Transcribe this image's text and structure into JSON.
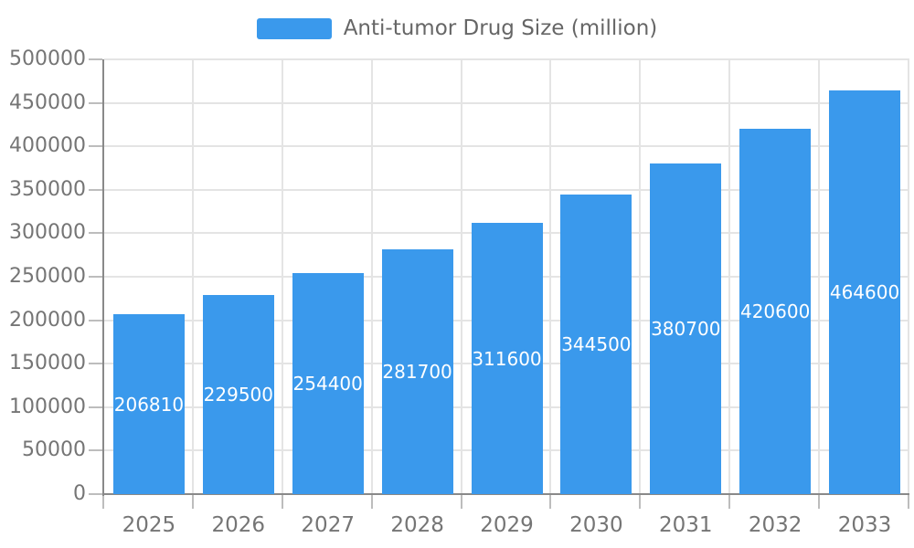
{
  "chart_data": {
    "type": "bar",
    "title": "",
    "legend": [
      "Anti-tumor Drug Size (million)"
    ],
    "legend_position": "top-center",
    "categories": [
      "2025",
      "2026",
      "2027",
      "2028",
      "2029",
      "2030",
      "2031",
      "2032",
      "2033"
    ],
    "series": [
      {
        "name": "Anti-tumor Drug Size (million)",
        "values": [
          206810,
          229500,
          254400,
          281700,
          311600,
          344500,
          380700,
          420600,
          464600
        ]
      }
    ],
    "bar_value_labels": [
      "206810",
      "229500",
      "254400",
      "281700",
      "311600",
      "344500",
      "380700",
      "420600",
      "464600"
    ],
    "xlabel": "",
    "ylabel": "",
    "ylim": [
      0,
      500000
    ],
    "y_ticks": [
      0,
      50000,
      100000,
      150000,
      200000,
      250000,
      300000,
      350000,
      400000,
      450000,
      500000
    ],
    "grid": true,
    "colors": {
      "bar": "#3A99EC",
      "bar_label": "#FFFFFF",
      "axis_label": "#757575",
      "legend_text": "#666666",
      "axis_line": "#898989",
      "tick": "#BDBDBD",
      "grid_line": "#E4E4E4",
      "background": "#FFFFFF"
    }
  }
}
